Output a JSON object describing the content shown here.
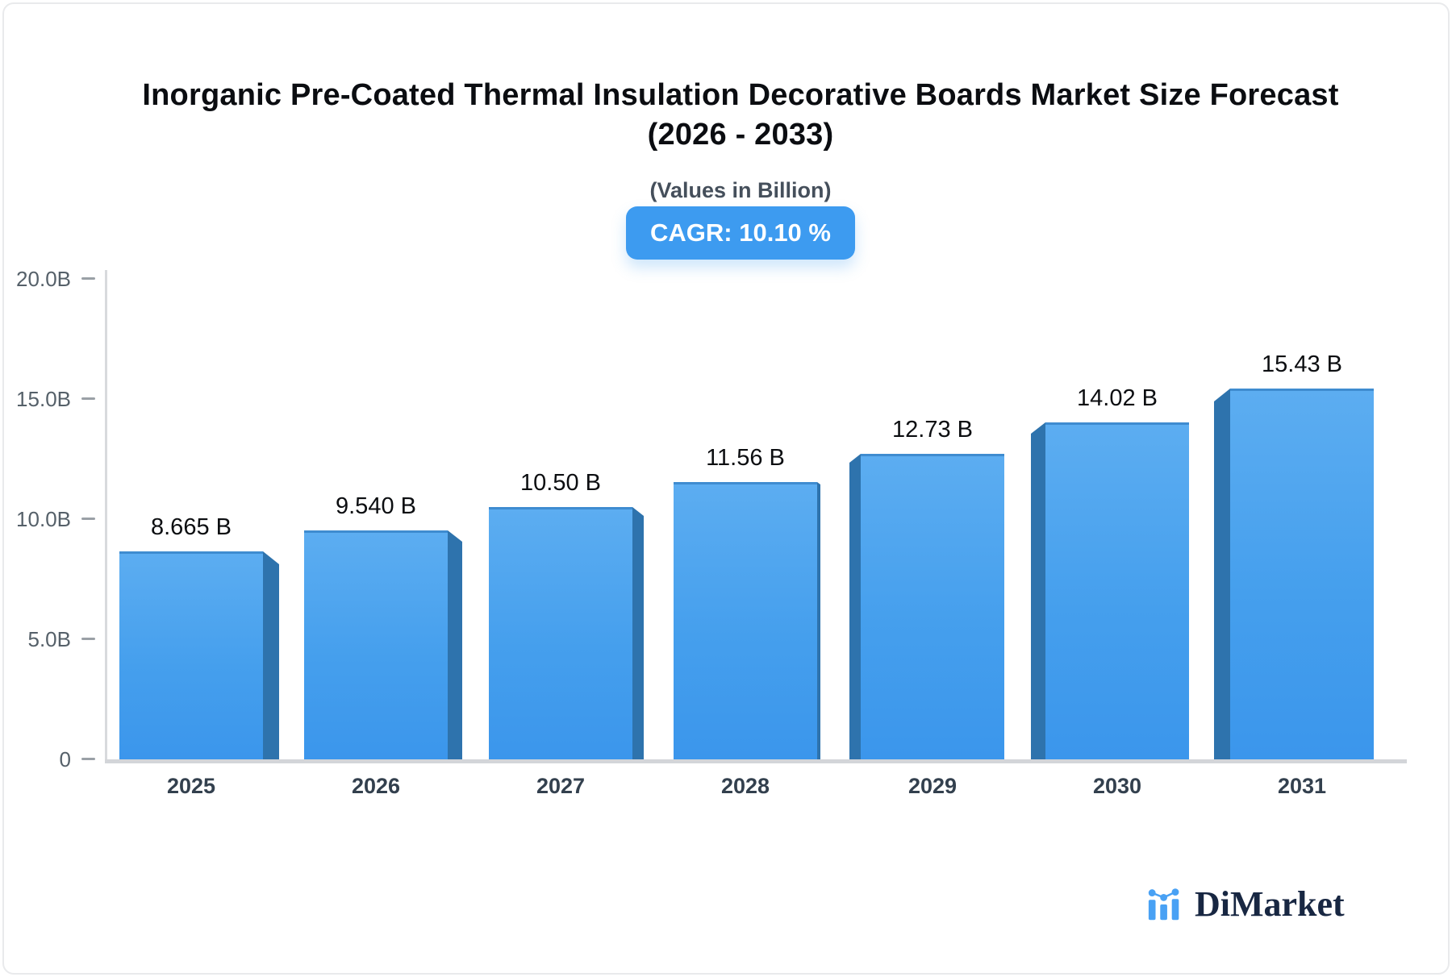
{
  "title": {
    "line1": "Inorganic Pre-Coated Thermal Insulation Decorative Boards Market Size Forecast",
    "line2": "(2026 - 2033)"
  },
  "subtitle": "(Values in Billion)",
  "badge": {
    "label": "CAGR: 10.10 %"
  },
  "chart_data": {
    "type": "bar",
    "title": "Inorganic Pre-Coated Thermal Insulation Decorative Boards Market Size Forecast (2026 - 2033)",
    "subtitle": "(Values in Billion)",
    "cagr": "10.10 %",
    "categories": [
      "2025",
      "2026",
      "2027",
      "2028",
      "2029",
      "2030",
      "2031"
    ],
    "values": [
      8.665,
      9.54,
      10.5,
      11.56,
      12.73,
      14.02,
      15.43
    ],
    "value_labels": [
      "8.665 B",
      "9.540 B",
      "10.50 B",
      "11.56 B",
      "12.73 B",
      "14.02 B",
      "15.43 B"
    ],
    "unit": "Billion",
    "ylim": [
      0,
      20
    ],
    "yticks": [
      {
        "label": "20.0B",
        "value": 20
      },
      {
        "label": "15.0B",
        "value": 15
      },
      {
        "label": "10.0B",
        "value": 10
      },
      {
        "label": "5.0B",
        "value": 5
      },
      {
        "label": "0",
        "value": 0
      }
    ],
    "grid": false,
    "legend": false,
    "colors": {
      "bar_front": "#459fed",
      "bar_side": "#2e73ad",
      "badge": "#3d9bf0",
      "axis": "#d8dadd",
      "value_label": "#0c0e11",
      "x_label": "#33404e",
      "y_label": "#556069"
    }
  },
  "logo": {
    "text": "DiMarket",
    "icon": "mini-bar-chart-icon",
    "color": "#182742",
    "accent": "#49a1f4"
  }
}
